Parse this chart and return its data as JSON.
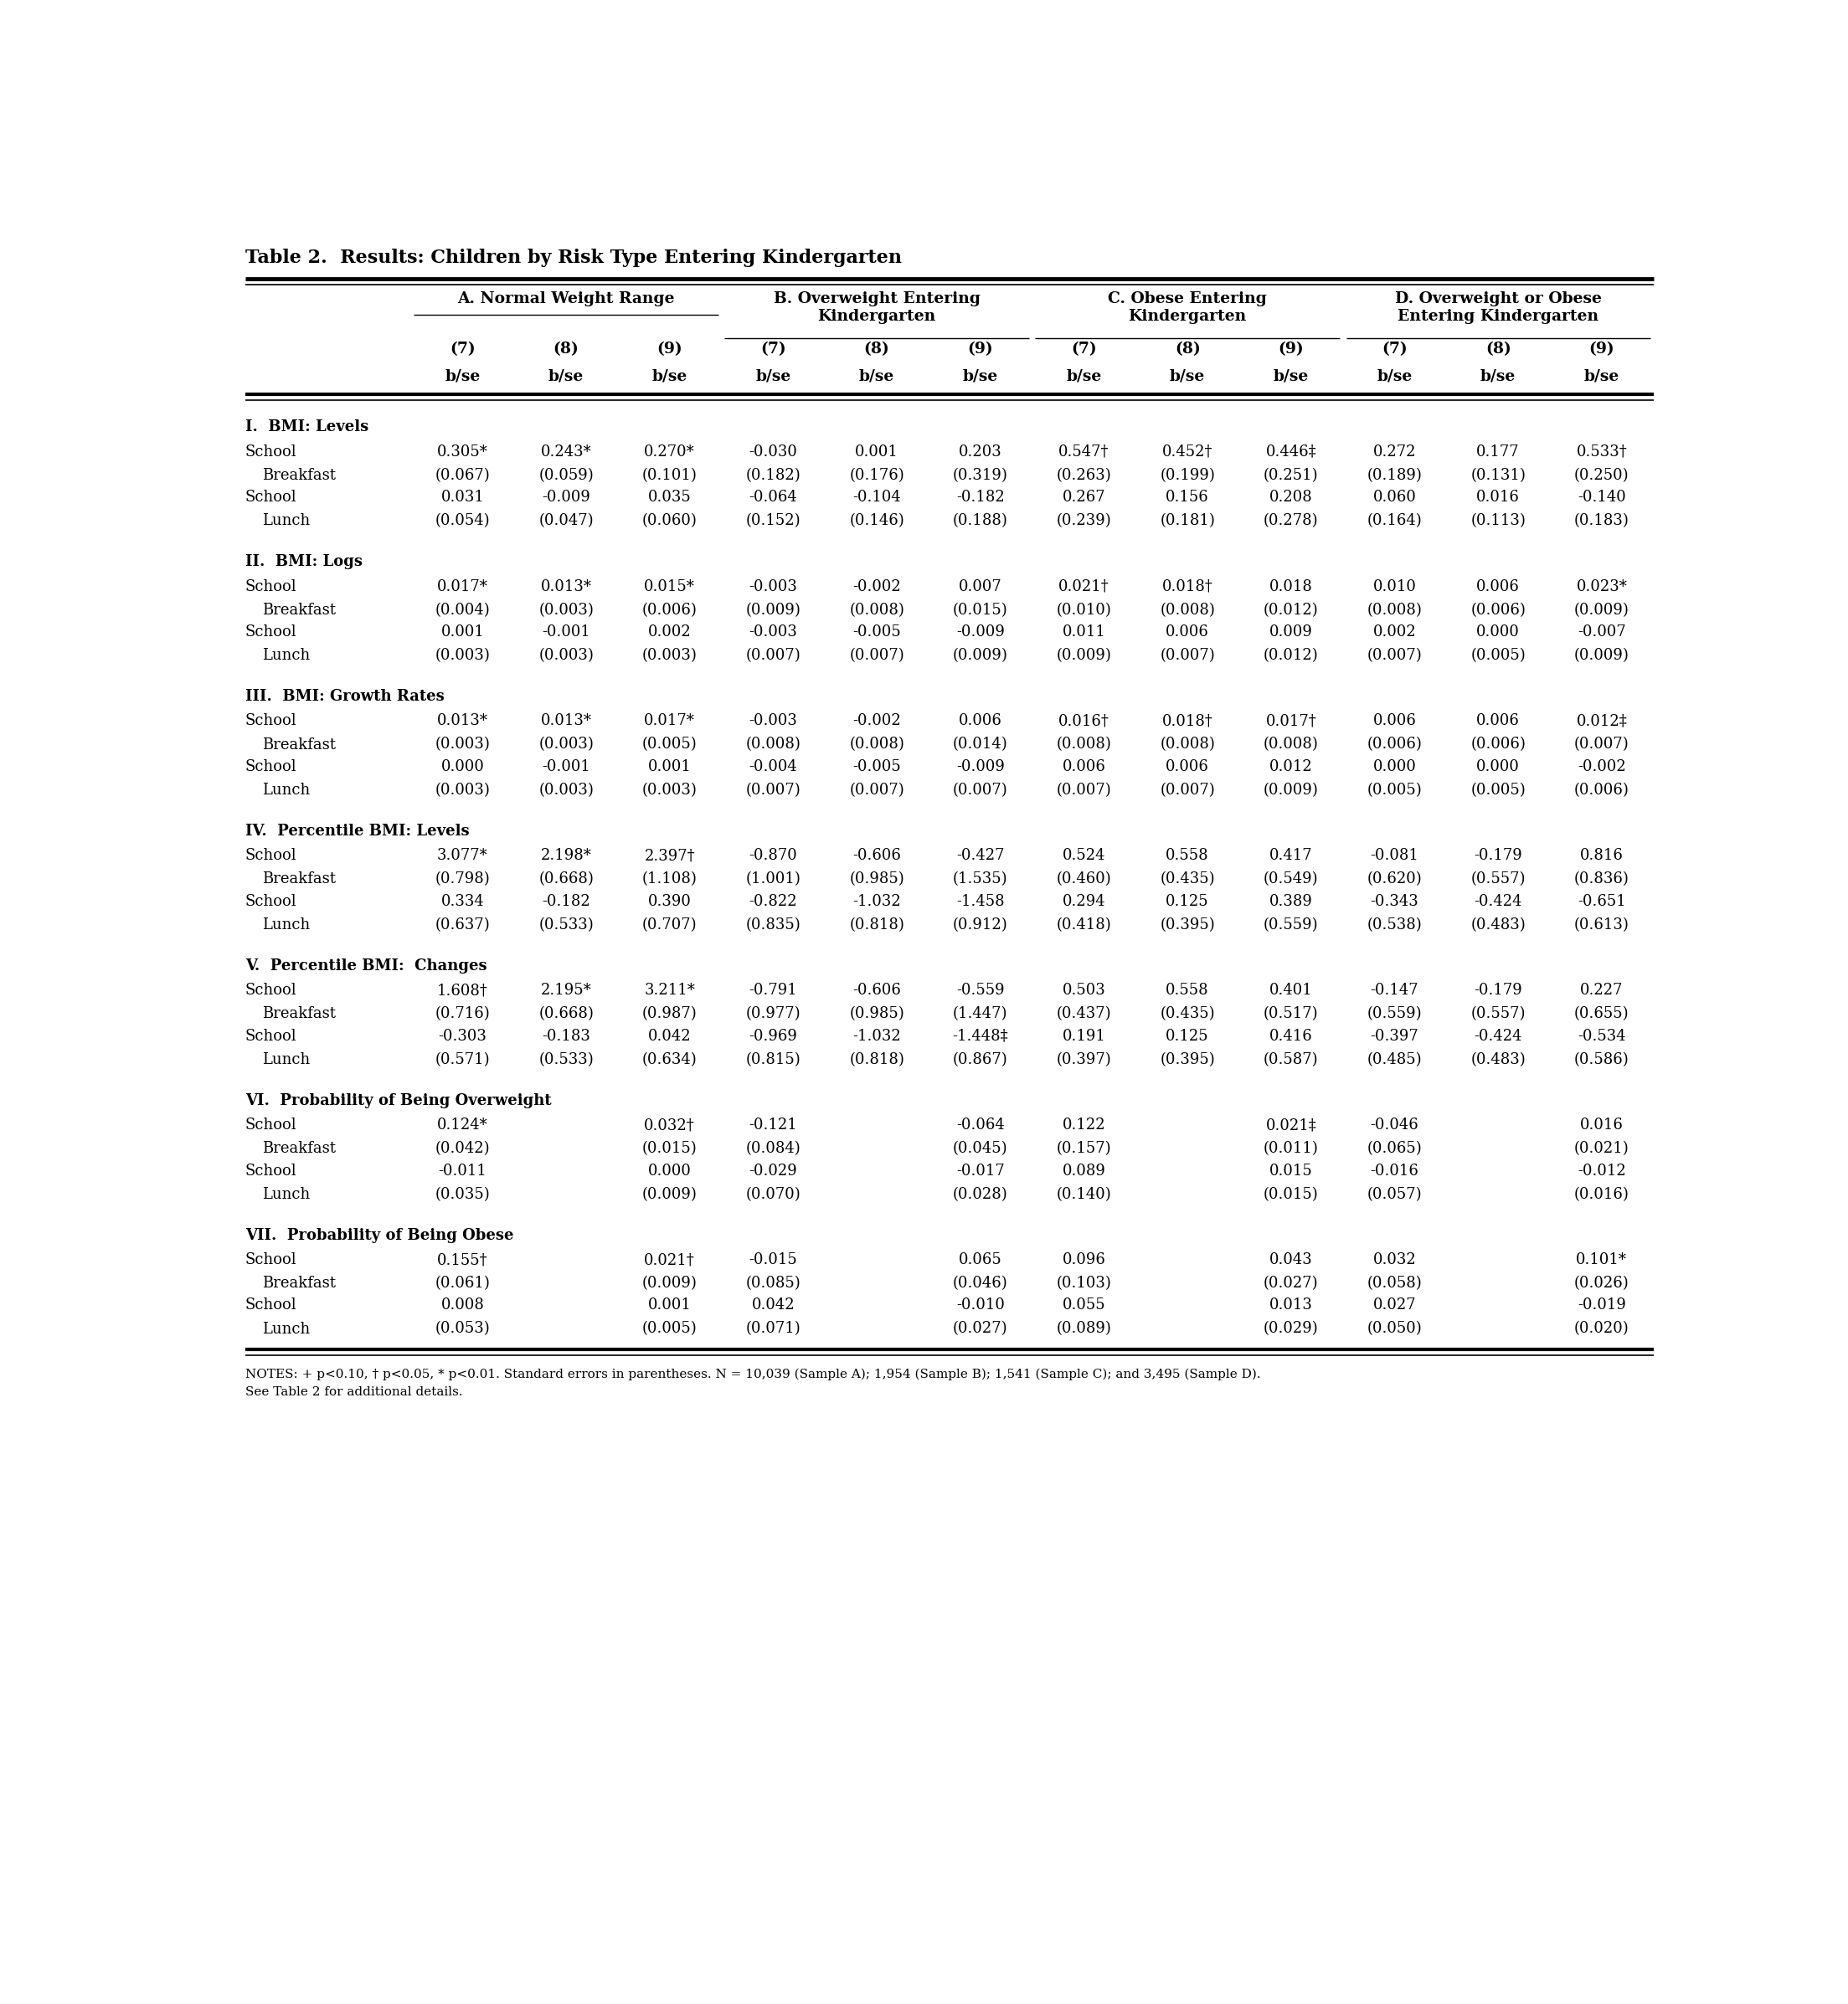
{
  "title": "Table 2.  Results: Children by Risk Type Entering Kindergarten",
  "notes": "NOTES: + p<0.10, † p<0.05, * p<0.01. Standard errors in parentheses. N = 10,039 (Sample A); 1,954 (Sample B); 1,541 (Sample C); and 3,495 (Sample D).\nSee Table 2 for additional details.",
  "col_groups": [
    {
      "label": "A. Normal Weight Range"
    },
    {
      "label": "B. Overweight Entering\nKindergarten"
    },
    {
      "label": "C. Obese Entering\nKindergarten"
    },
    {
      "label": "D. Overweight or Obese\nEntering Kindergarten"
    }
  ],
  "sections": [
    {
      "title": "I.  BMI: Levels",
      "rows": [
        {
          "label": "School",
          "sub": "Breakfast",
          "values": [
            "0.305*",
            "0.243*",
            "0.270*",
            "-0.030",
            "0.001",
            "0.203",
            "0.547†",
            "0.452†",
            "0.446‡",
            "0.272",
            "0.177",
            "0.533†"
          ],
          "se": [
            "(0.067)",
            "(0.059)",
            "(0.101)",
            "(0.182)",
            "(0.176)",
            "(0.319)",
            "(0.263)",
            "(0.199)",
            "(0.251)",
            "(0.189)",
            "(0.131)",
            "(0.250)"
          ]
        },
        {
          "label": "School",
          "sub": "Lunch",
          "values": [
            "0.031",
            "-0.009",
            "0.035",
            "-0.064",
            "-0.104",
            "-0.182",
            "0.267",
            "0.156",
            "0.208",
            "0.060",
            "0.016",
            "-0.140"
          ],
          "se": [
            "(0.054)",
            "(0.047)",
            "(0.060)",
            "(0.152)",
            "(0.146)",
            "(0.188)",
            "(0.239)",
            "(0.181)",
            "(0.278)",
            "(0.164)",
            "(0.113)",
            "(0.183)"
          ]
        }
      ]
    },
    {
      "title": "II.  BMI: Logs",
      "rows": [
        {
          "label": "School",
          "sub": "Breakfast",
          "values": [
            "0.017*",
            "0.013*",
            "0.015*",
            "-0.003",
            "-0.002",
            "0.007",
            "0.021†",
            "0.018†",
            "0.018",
            "0.010",
            "0.006",
            "0.023*"
          ],
          "se": [
            "(0.004)",
            "(0.003)",
            "(0.006)",
            "(0.009)",
            "(0.008)",
            "(0.015)",
            "(0.010)",
            "(0.008)",
            "(0.012)",
            "(0.008)",
            "(0.006)",
            "(0.009)"
          ]
        },
        {
          "label": "School",
          "sub": "Lunch",
          "values": [
            "0.001",
            "-0.001",
            "0.002",
            "-0.003",
            "-0.005",
            "-0.009",
            "0.011",
            "0.006",
            "0.009",
            "0.002",
            "0.000",
            "-0.007"
          ],
          "se": [
            "(0.003)",
            "(0.003)",
            "(0.003)",
            "(0.007)",
            "(0.007)",
            "(0.009)",
            "(0.009)",
            "(0.007)",
            "(0.012)",
            "(0.007)",
            "(0.005)",
            "(0.009)"
          ]
        }
      ]
    },
    {
      "title": "III.  BMI: Growth Rates",
      "rows": [
        {
          "label": "School",
          "sub": "Breakfast",
          "values": [
            "0.013*",
            "0.013*",
            "0.017*",
            "-0.003",
            "-0.002",
            "0.006",
            "0.016†",
            "0.018†",
            "0.017†",
            "0.006",
            "0.006",
            "0.012‡"
          ],
          "se": [
            "(0.003)",
            "(0.003)",
            "(0.005)",
            "(0.008)",
            "(0.008)",
            "(0.014)",
            "(0.008)",
            "(0.008)",
            "(0.008)",
            "(0.006)",
            "(0.006)",
            "(0.007)"
          ]
        },
        {
          "label": "School",
          "sub": "Lunch",
          "values": [
            "0.000",
            "-0.001",
            "0.001",
            "-0.004",
            "-0.005",
            "-0.009",
            "0.006",
            "0.006",
            "0.012",
            "0.000",
            "0.000",
            "-0.002"
          ],
          "se": [
            "(0.003)",
            "(0.003)",
            "(0.003)",
            "(0.007)",
            "(0.007)",
            "(0.007)",
            "(0.007)",
            "(0.007)",
            "(0.009)",
            "(0.005)",
            "(0.005)",
            "(0.006)"
          ]
        }
      ]
    },
    {
      "title": "IV.  Percentile BMI: Levels",
      "rows": [
        {
          "label": "School",
          "sub": "Breakfast",
          "values": [
            "3.077*",
            "2.198*",
            "2.397†",
            "-0.870",
            "-0.606",
            "-0.427",
            "0.524",
            "0.558",
            "0.417",
            "-0.081",
            "-0.179",
            "0.816"
          ],
          "se": [
            "(0.798)",
            "(0.668)",
            "(1.108)",
            "(1.001)",
            "(0.985)",
            "(1.535)",
            "(0.460)",
            "(0.435)",
            "(0.549)",
            "(0.620)",
            "(0.557)",
            "(0.836)"
          ]
        },
        {
          "label": "School",
          "sub": "Lunch",
          "values": [
            "0.334",
            "-0.182",
            "0.390",
            "-0.822",
            "-1.032",
            "-1.458",
            "0.294",
            "0.125",
            "0.389",
            "-0.343",
            "-0.424",
            "-0.651"
          ],
          "se": [
            "(0.637)",
            "(0.533)",
            "(0.707)",
            "(0.835)",
            "(0.818)",
            "(0.912)",
            "(0.418)",
            "(0.395)",
            "(0.559)",
            "(0.538)",
            "(0.483)",
            "(0.613)"
          ]
        }
      ]
    },
    {
      "title": "V.  Percentile BMI:  Changes",
      "rows": [
        {
          "label": "School",
          "sub": "Breakfast",
          "values": [
            "1.608†",
            "2.195*",
            "3.211*",
            "-0.791",
            "-0.606",
            "-0.559",
            "0.503",
            "0.558",
            "0.401",
            "-0.147",
            "-0.179",
            "0.227"
          ],
          "se": [
            "(0.716)",
            "(0.668)",
            "(0.987)",
            "(0.977)",
            "(0.985)",
            "(1.447)",
            "(0.437)",
            "(0.435)",
            "(0.517)",
            "(0.559)",
            "(0.557)",
            "(0.655)"
          ]
        },
        {
          "label": "School",
          "sub": "Lunch",
          "values": [
            "-0.303",
            "-0.183",
            "0.042",
            "-0.969",
            "-1.032",
            "-1.448‡",
            "0.191",
            "0.125",
            "0.416",
            "-0.397",
            "-0.424",
            "-0.534"
          ],
          "se": [
            "(0.571)",
            "(0.533)",
            "(0.634)",
            "(0.815)",
            "(0.818)",
            "(0.867)",
            "(0.397)",
            "(0.395)",
            "(0.587)",
            "(0.485)",
            "(0.483)",
            "(0.586)"
          ]
        }
      ]
    },
    {
      "title": "VI.  Probability of Being Overweight",
      "rows": [
        {
          "label": "School",
          "sub": "Breakfast",
          "values": [
            "0.124*",
            "",
            "0.032†",
            "-0.121",
            "",
            "-0.064",
            "0.122",
            "",
            "0.021‡",
            "-0.046",
            "",
            "0.016"
          ],
          "se": [
            "(0.042)",
            "",
            "(0.015)",
            "(0.084)",
            "",
            "(0.045)",
            "(0.157)",
            "",
            "(0.011)",
            "(0.065)",
            "",
            "(0.021)"
          ]
        },
        {
          "label": "School",
          "sub": "Lunch",
          "values": [
            "-0.011",
            "",
            "0.000",
            "-0.029",
            "",
            "-0.017",
            "0.089",
            "",
            "0.015",
            "-0.016",
            "",
            "-0.012"
          ],
          "se": [
            "(0.035)",
            "",
            "(0.009)",
            "(0.070)",
            "",
            "(0.028)",
            "(0.140)",
            "",
            "(0.015)",
            "(0.057)",
            "",
            "(0.016)"
          ]
        }
      ]
    },
    {
      "title": "VII.  Probability of Being Obese",
      "rows": [
        {
          "label": "School",
          "sub": "Breakfast",
          "values": [
            "0.155†",
            "",
            "0.021†",
            "-0.015",
            "",
            "0.065",
            "0.096",
            "",
            "0.043",
            "0.032",
            "",
            "0.101*"
          ],
          "se": [
            "(0.061)",
            "",
            "(0.009)",
            "(0.085)",
            "",
            "(0.046)",
            "(0.103)",
            "",
            "(0.027)",
            "(0.058)",
            "",
            "(0.026)"
          ]
        },
        {
          "label": "School",
          "sub": "Lunch",
          "values": [
            "0.008",
            "",
            "0.001",
            "0.042",
            "",
            "-0.010",
            "0.055",
            "",
            "0.013",
            "0.027",
            "",
            "-0.019"
          ],
          "se": [
            "(0.053)",
            "",
            "(0.005)",
            "(0.071)",
            "",
            "(0.027)",
            "(0.089)",
            "",
            "(0.029)",
            "(0.050)",
            "",
            "(0.020)"
          ]
        }
      ]
    }
  ]
}
